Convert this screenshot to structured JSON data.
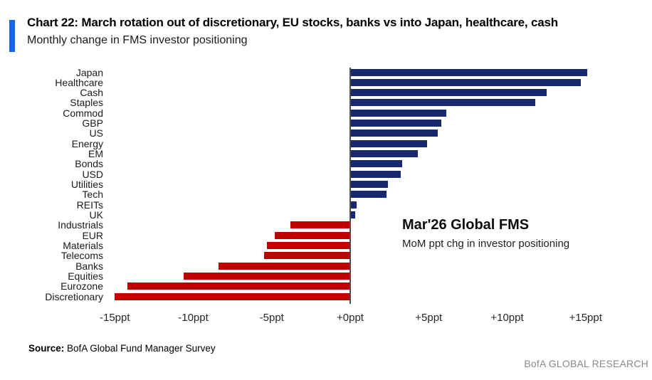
{
  "header": {
    "title": "Chart 22: March rotation out of discretionary, EU stocks, banks vs into Japan, healthcare, cash",
    "subtitle": "Monthly change in FMS investor positioning",
    "accent_color": "#1667e3"
  },
  "chart_data": {
    "type": "bar",
    "orientation": "horizontal",
    "title": "Mar'26 Global FMS",
    "annotation_subtitle": "MoM ppt chg in investor positioning",
    "unit": "ppt",
    "categories": [
      "Japan",
      "Healthcare",
      "Cash",
      "Staples",
      "Commod",
      "GBP",
      "US",
      "Energy",
      "EM",
      "Bonds",
      "USD",
      "Utilities",
      "Tech",
      "REITs",
      "UK",
      "Industrials",
      "EUR",
      "Materials",
      "Telecoms",
      "Banks",
      "Equities",
      "Eurozone",
      "Discretionary"
    ],
    "values": [
      15.1,
      14.7,
      12.5,
      11.8,
      6.1,
      5.8,
      5.6,
      4.9,
      4.3,
      3.3,
      3.2,
      2.4,
      2.3,
      0.4,
      0.3,
      -3.8,
      -4.8,
      -5.3,
      -5.5,
      -8.4,
      -10.6,
      -14.2,
      -15.0
    ],
    "x_ticks": [
      -15,
      -10,
      -5,
      0,
      5,
      10,
      15
    ],
    "x_tick_labels": [
      "-15ppt",
      "-10ppt",
      "-5ppt",
      "+0ppt",
      "+5ppt",
      "+10ppt",
      "+15ppt"
    ],
    "xlim": [
      -16.5,
      16.5
    ],
    "positive_color": "#17286e",
    "negative_color": "#c00000",
    "axis_line_color": "#4d4d4d",
    "grid": false,
    "legend_position": "none"
  },
  "footer": {
    "source_label": "Source:",
    "source_text": " BofA Global Fund Manager Survey",
    "brand": "BofA GLOBAL RESEARCH"
  }
}
